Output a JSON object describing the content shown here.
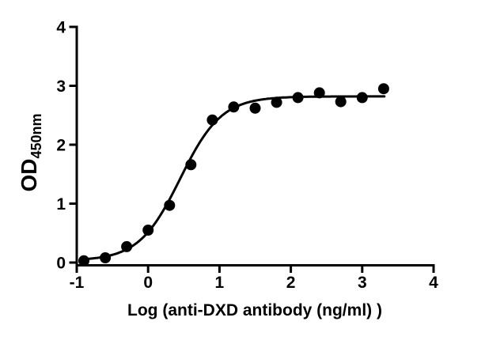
{
  "figure": {
    "background_color": "#ffffff",
    "ink_color": "#000000"
  },
  "chart_data": {
    "type": "scatter",
    "subtype": "sigmoidal dose-response curve with fitted line",
    "title": "",
    "xlabel": "Log (anti-DXD antibody (ng/ml) )",
    "ylabel_main": "OD",
    "ylabel_subscript": "450nm",
    "xlim": [
      -1,
      4
    ],
    "ylim": [
      0,
      4
    ],
    "x_ticks": [
      -1,
      0,
      1,
      2,
      3,
      4
    ],
    "y_ticks": [
      0,
      1,
      2,
      3,
      4
    ],
    "grid": false,
    "legend": "none",
    "marker": {
      "shape": "filled-circle",
      "color": "#000000",
      "radius_px": 7
    },
    "curve_color": "#000000",
    "points": [
      {
        "x": -0.9,
        "y": 0.03
      },
      {
        "x": -0.6,
        "y": 0.08
      },
      {
        "x": -0.3,
        "y": 0.27
      },
      {
        "x": 0.0,
        "y": 0.55
      },
      {
        "x": 0.3,
        "y": 0.97
      },
      {
        "x": 0.6,
        "y": 1.66
      },
      {
        "x": 0.9,
        "y": 2.42
      },
      {
        "x": 1.2,
        "y": 2.64
      },
      {
        "x": 1.5,
        "y": 2.62
      },
      {
        "x": 1.8,
        "y": 2.72
      },
      {
        "x": 2.1,
        "y": 2.8
      },
      {
        "x": 2.4,
        "y": 2.88
      },
      {
        "x": 2.7,
        "y": 2.73
      },
      {
        "x": 3.0,
        "y": 2.8
      },
      {
        "x": 3.3,
        "y": 2.95
      }
    ],
    "fit_curve": {
      "model": "four-parameter-logistic",
      "bottom": 0.03,
      "top": 2.82,
      "logEC50": 0.45,
      "hill_slope": 1.5,
      "x_start": -0.95,
      "x_end": 3.31
    }
  }
}
